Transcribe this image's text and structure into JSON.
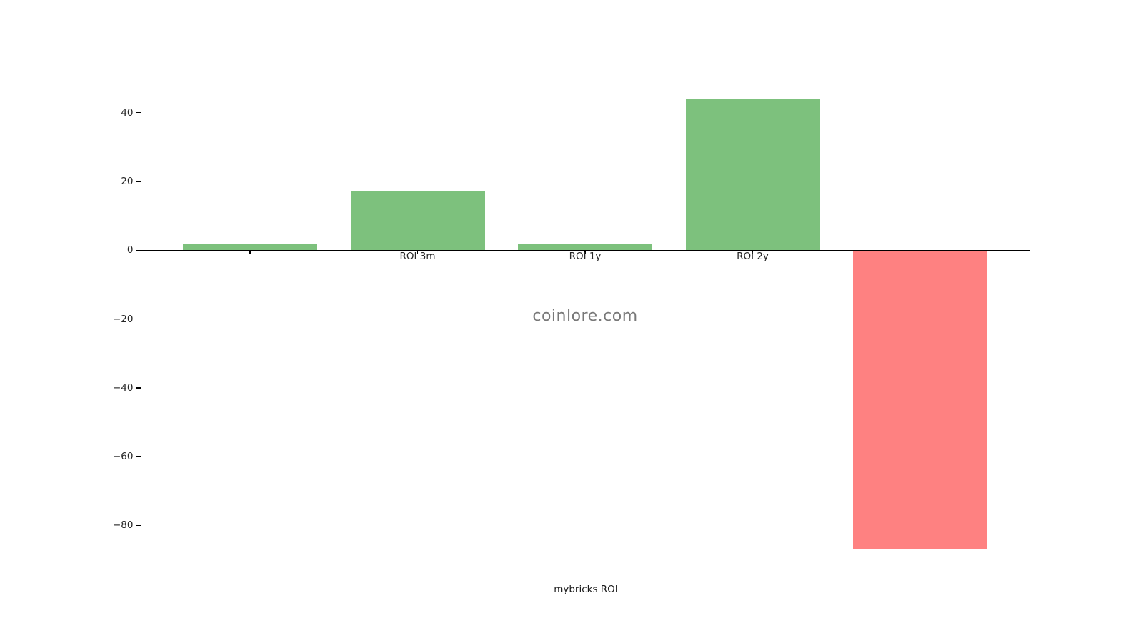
{
  "watermark": "coinlore.com",
  "chart_data": {
    "type": "bar",
    "title": "",
    "xlabel": "mybricks ROI",
    "ylabel": "",
    "categories": [
      "",
      "ROI 3m",
      "ROI 1y",
      "ROI 2y",
      ""
    ],
    "values": [
      2,
      17,
      2,
      44,
      -87
    ],
    "yticks": [
      40,
      20,
      0,
      -20,
      -40,
      -60,
      -80
    ],
    "ylim": [
      -93.5,
      50.5
    ],
    "grid": false,
    "legend": "none",
    "positive_color": "#7dc17d",
    "negative_color": "#fe8181",
    "axis_color": "#000000",
    "tick_text_color": "#262626",
    "watermark_color": "#787878"
  }
}
